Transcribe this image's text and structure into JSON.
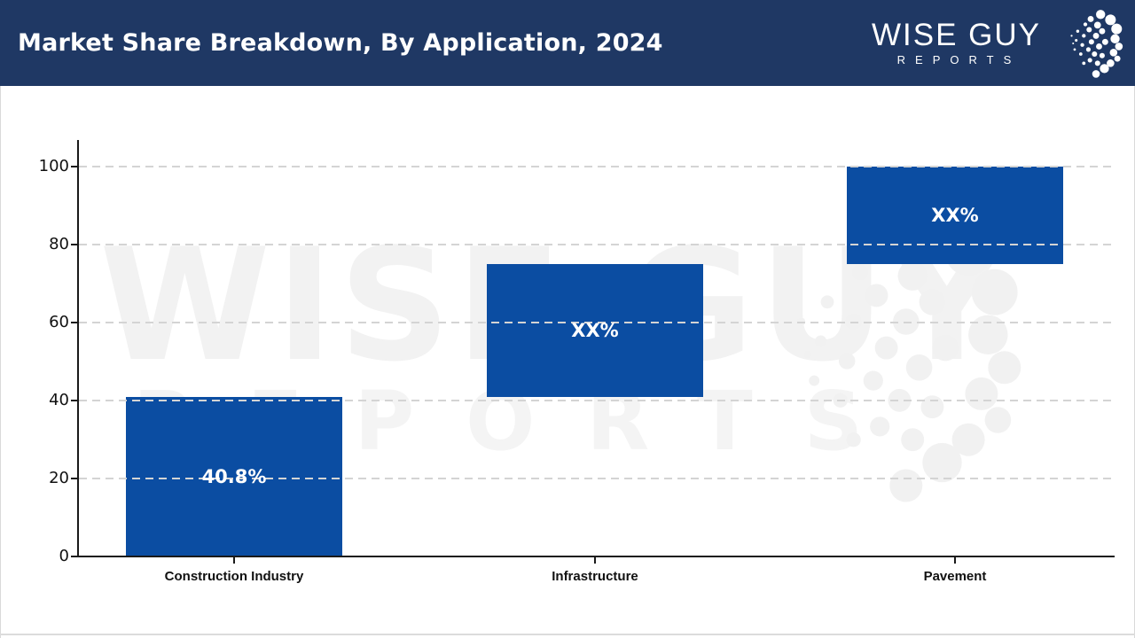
{
  "header": {
    "title": "Market Share Breakdown, By Application, 2024",
    "logo": {
      "line1": "WISE GUY",
      "line2": "REPORTS"
    },
    "bg_color": "#1f3864"
  },
  "watermark": {
    "line1": "WISE GUY",
    "line2": "REPORTS"
  },
  "chart_data": {
    "type": "bar",
    "subtype": "waterfall-stacked-segments",
    "title": "Market Share Breakdown, By Application, 2024",
    "categories": [
      "Construction Industry",
      "Infrastructure",
      "Pavement"
    ],
    "segments": [
      {
        "category": "Construction Industry",
        "start": 0,
        "end": 40.8,
        "label": "40.8%"
      },
      {
        "category": "Infrastructure",
        "start": 40.8,
        "end": 75,
        "label": "XX%"
      },
      {
        "category": "Pavement",
        "start": 75,
        "end": 100,
        "label": "XX%"
      }
    ],
    "ylim": [
      0,
      100
    ],
    "yticks": [
      0,
      20,
      40,
      60,
      80,
      100
    ],
    "grid": "horizontal-dashed-over-bars",
    "legend": "none",
    "bar_color": "#0b4da2",
    "bar_label_color": "#ffffff",
    "axis_color": "#1a1a1a",
    "gridline_color": "#d4d4d4"
  }
}
